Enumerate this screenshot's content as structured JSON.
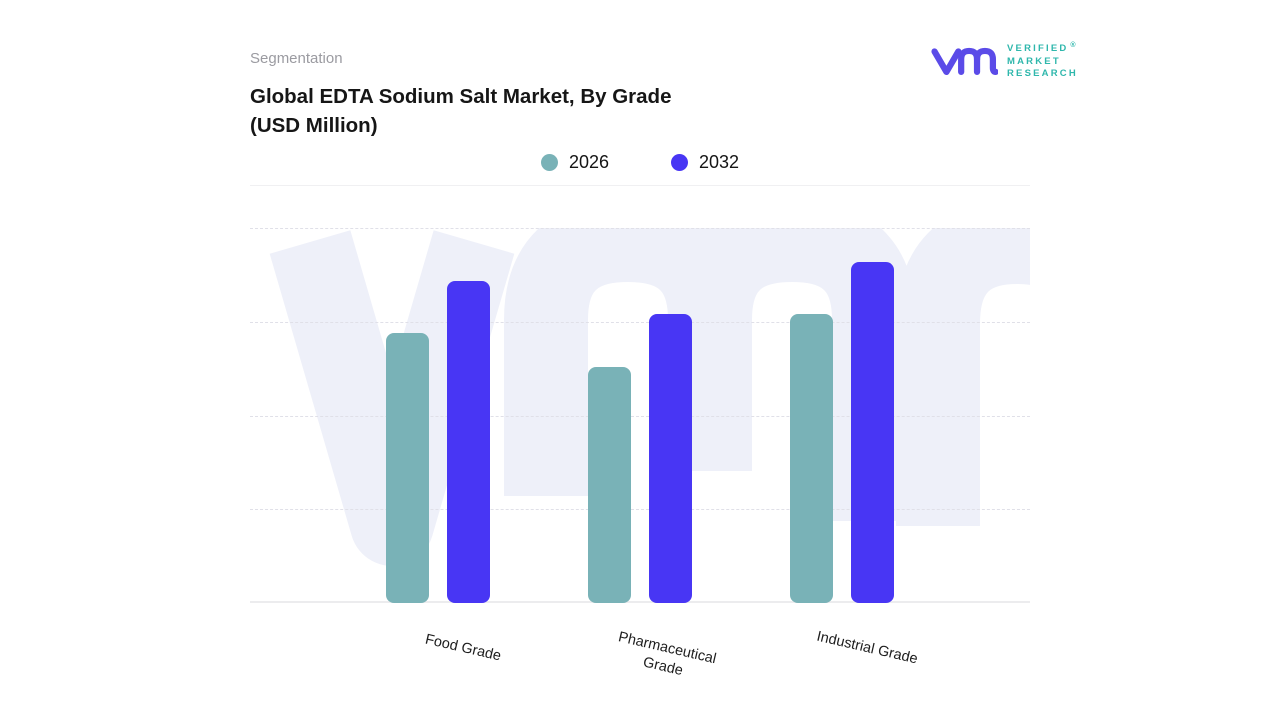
{
  "header": {
    "eyebrow": "Segmentation",
    "title": "Global EDTA Sodium Salt Market, By Grade (USD Million)"
  },
  "logo": {
    "lines": [
      "VERIFIED",
      "MARKET",
      "RESEARCH"
    ],
    "registered_mark": "®",
    "mark_color": "#5b4be8",
    "text_color": "#2fb7ac"
  },
  "legend": [
    {
      "label": "2026",
      "color": "#79b2b7"
    },
    {
      "label": "2032",
      "color": "#4836f4"
    }
  ],
  "watermark": {
    "name": "vmr-letters",
    "color": "#eef0f9"
  },
  "chart_data": {
    "type": "bar",
    "title": "Global EDTA Sodium Salt Market, By Grade (USD Million)",
    "units": "USD Million",
    "categories": [
      "Food Grade",
      "Pharmaceutical Grade",
      "Industrial Grade"
    ],
    "series": [
      {
        "name": "2026",
        "color": "#79b2b7",
        "values": [
          72,
          63,
          77
        ]
      },
      {
        "name": "2032",
        "color": "#4836f4",
        "values": [
          86,
          77,
          91
        ]
      }
    ],
    "xlabel": "",
    "ylabel": "",
    "ylim": [
      0,
      100
    ],
    "y_tick_labels_visible": false,
    "grid": "horizontal-dashed",
    "gridline_count": 4,
    "legend_position": "top-center",
    "bar_corner_radius": 8
  }
}
